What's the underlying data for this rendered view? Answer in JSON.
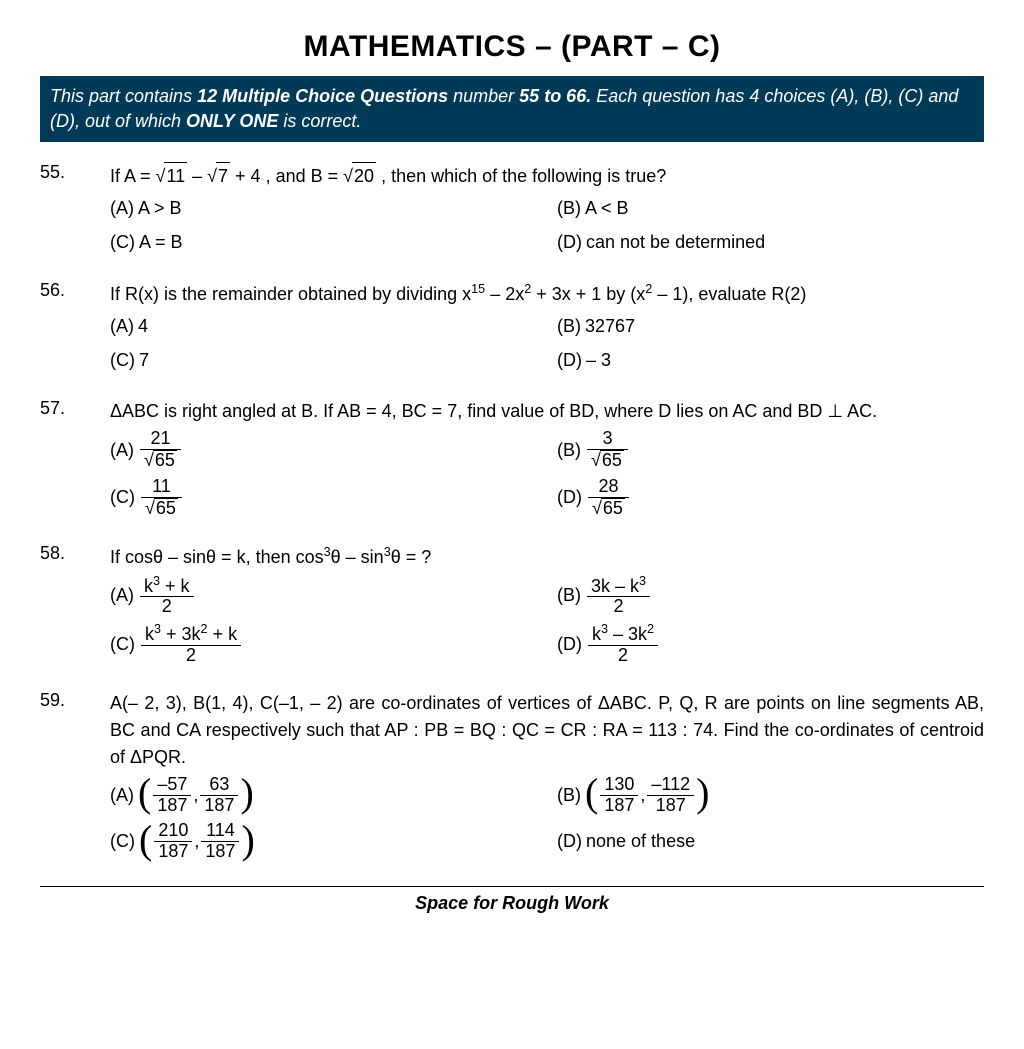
{
  "title": "MATHEMATICS – (PART – C)",
  "banner": {
    "pre": "This part contains ",
    "b1": "12 Multiple Choice Questions",
    "mid1": " number ",
    "b2": "55 to 66.",
    "mid2": " Each question has 4 choices (A), (B), (C) and (D), out of which ",
    "b3": "ONLY ONE",
    "post": " is correct."
  },
  "colors": {
    "banner_bg": "#003a57",
    "banner_fg": "#ffffff",
    "page_bg": "#ffffff",
    "text": "#000000",
    "rule": "#000000"
  },
  "typography": {
    "title_fontsize": 30,
    "body_fontsize": 18,
    "font_family": "Arial"
  },
  "rough_label": "Space for Rough Work",
  "questions": [
    {
      "num": "55.",
      "stem_html": "If A = <span class='sqrt'>√<span class='sqrt-bar'>11</span></span> – <span class='sqrt'>√<span class='sqrt-bar'>7</span></span> + 4 , and B = <span class='sqrt'>√<span class='sqrt-bar'>20</span></span> , then which of the following is true?",
      "choices": {
        "A": "A > B",
        "B": "A < B",
        "C": "A = B",
        "D": "can not be determined"
      }
    },
    {
      "num": "56.",
      "stem_html": "If R(x) is the remainder obtained by dividing x<sup>15</sup> – 2x<sup>2</sup> + 3x + 1 by (x<sup>2</sup> – 1), evaluate R(2)",
      "choices": {
        "A": "4",
        "B": "32767",
        "C": "7",
        "D": "– 3"
      }
    },
    {
      "num": "57.",
      "stem_html": "ΔABC is right angled at B. If AB = 4, BC = 7, find value of BD, where D lies on AC and BD ⊥ AC.",
      "frac_choices": {
        "A": {
          "num": "21",
          "den": "<span class='sqrt'>√<span class='sqrt-bar'>65</span></span>"
        },
        "B": {
          "num": "3",
          "den": "<span class='sqrt'>√<span class='sqrt-bar'>65</span></span>"
        },
        "C": {
          "num": "11",
          "den": "<span class='sqrt'>√<span class='sqrt-bar'>65</span></span>"
        },
        "D": {
          "num": "28",
          "den": "<span class='sqrt'>√<span class='sqrt-bar'>65</span></span>"
        }
      }
    },
    {
      "num": "58.",
      "stem_html": "If cosθ – sinθ = k, then cos<sup>3</sup>θ – sin<sup>3</sup>θ = ?",
      "frac_choices": {
        "A": {
          "num": "k<sup>3</sup> + k",
          "den": "2"
        },
        "B": {
          "num": "3k – k<sup>3</sup>",
          "den": "2"
        },
        "C": {
          "num": "k<sup>3</sup> + 3k<sup>2</sup> + k",
          "den": "2"
        },
        "D": {
          "num": "k<sup>3</sup> – 3k<sup>2</sup>",
          "den": "2"
        }
      }
    },
    {
      "num": "59.",
      "stem_html": "A(– 2, 3), B(1, 4), C(–1, – 2) are co-ordinates of vertices of ΔABC. P, Q, R are points on line segments AB, BC and CA respectively such that AP : PB = BQ : QC = CR : RA = 113 : 74. Find the co-ordinates of centroid of ΔPQR.",
      "pair_choices": {
        "A": {
          "n1": "–57",
          "d1": "187",
          "n2": "63",
          "d2": "187"
        },
        "B": {
          "n1": "130",
          "d1": "187",
          "n2": "–112",
          "d2": "187"
        },
        "C": {
          "n1": "210",
          "d1": "187",
          "n2": "114",
          "d2": "187"
        }
      },
      "D_text": "none of these"
    }
  ]
}
